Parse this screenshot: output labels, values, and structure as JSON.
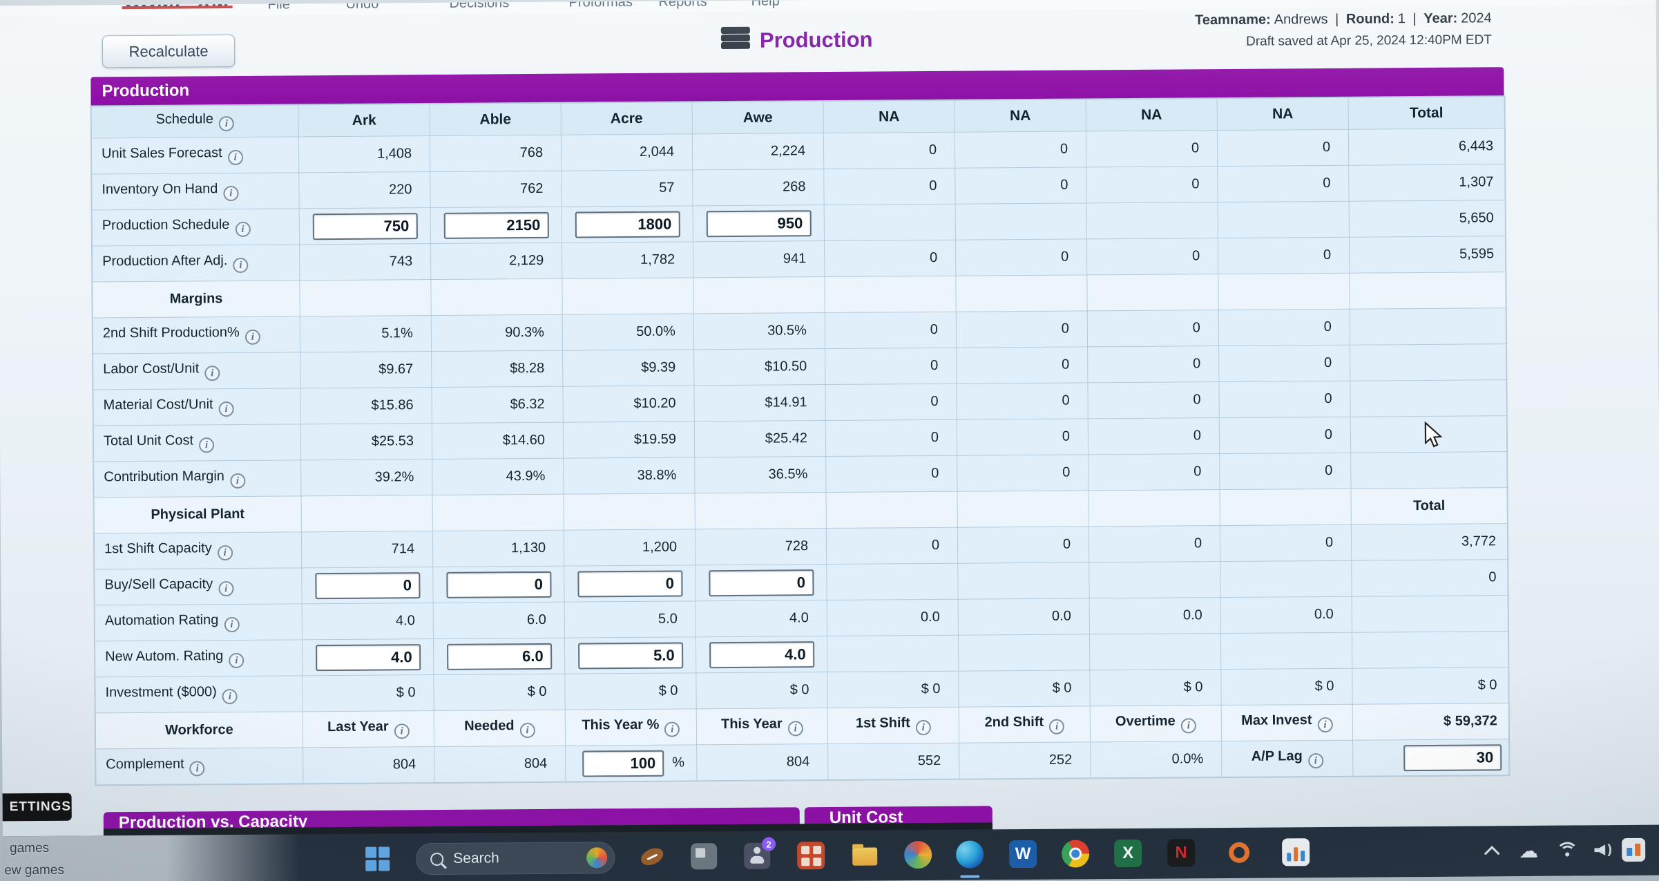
{
  "menu": {
    "logo": "COMP-XM",
    "items": [
      "File",
      "Undo",
      "Decisions",
      "Proformas",
      "Reports",
      "Help"
    ]
  },
  "header": {
    "recalculate": "Recalculate",
    "title": "Production",
    "team_label": "Teamname:",
    "team_value": "Andrews",
    "round_label": "Round:",
    "round_value": "1",
    "year_label": "Year:",
    "year_value": "2024",
    "sep": "|",
    "draft": "Draft saved at Apr 25, 2024 12:40PM EDT"
  },
  "prod_bar": "Production",
  "table": {
    "info_glyph": "i",
    "columns": [
      {
        "label": "Schedule",
        "info": true
      },
      {
        "label": "Ark"
      },
      {
        "label": "Able"
      },
      {
        "label": "Acre"
      },
      {
        "label": "Awe"
      },
      {
        "label": "NA"
      },
      {
        "label": "NA"
      },
      {
        "label": "NA"
      },
      {
        "label": "NA"
      },
      {
        "label": "Total"
      }
    ],
    "rows": [
      {
        "type": "data",
        "label": "Unit Sales Forecast",
        "info": true,
        "cells": [
          "1,408",
          "768",
          "2,044",
          "2,224",
          "0",
          "0",
          "0",
          "0"
        ],
        "total": "6,443"
      },
      {
        "type": "data",
        "label": "Inventory On Hand",
        "info": true,
        "cells": [
          "220",
          "762",
          "57",
          "268",
          "0",
          "0",
          "0",
          "0"
        ],
        "total": "1,307"
      },
      {
        "type": "input",
        "label": "Production Schedule",
        "info": true,
        "inputs": [
          "750",
          "2150",
          "1800",
          "950"
        ],
        "total": "5,650"
      },
      {
        "type": "data",
        "label": "Production After Adj.",
        "info": true,
        "cells": [
          "743",
          "2,129",
          "1,782",
          "941",
          "0",
          "0",
          "0",
          "0"
        ],
        "total": "5,595"
      },
      {
        "type": "section",
        "label": "Margins",
        "total_header": ""
      },
      {
        "type": "data",
        "label": "2nd Shift Production%",
        "info": true,
        "cells": [
          "5.1%",
          "90.3%",
          "50.0%",
          "30.5%",
          "0",
          "0",
          "0",
          "0"
        ],
        "total": ""
      },
      {
        "type": "data",
        "label": "Labor Cost/Unit",
        "info": true,
        "cells": [
          "$9.67",
          "$8.28",
          "$9.39",
          "$10.50",
          "0",
          "0",
          "0",
          "0"
        ],
        "total": ""
      },
      {
        "type": "data",
        "label": "Material Cost/Unit",
        "info": true,
        "cells": [
          "$15.86",
          "$6.32",
          "$10.20",
          "$14.91",
          "0",
          "0",
          "0",
          "0"
        ],
        "total": ""
      },
      {
        "type": "data",
        "label": "Total Unit Cost",
        "info": true,
        "cells": [
          "$25.53",
          "$14.60",
          "$19.59",
          "$25.42",
          "0",
          "0",
          "0",
          "0"
        ],
        "total": ""
      },
      {
        "type": "data",
        "label": "Contribution Margin",
        "info": true,
        "cells": [
          "39.2%",
          "43.9%",
          "38.8%",
          "36.5%",
          "0",
          "0",
          "0",
          "0"
        ],
        "total": ""
      },
      {
        "type": "section",
        "label": "Physical Plant",
        "total_header": "Total"
      },
      {
        "type": "data",
        "label": "1st Shift Capacity",
        "info": true,
        "cells": [
          "714",
          "1,130",
          "1,200",
          "728",
          "0",
          "0",
          "0",
          "0"
        ],
        "total": "3,772"
      },
      {
        "type": "input",
        "label": "Buy/Sell Capacity",
        "info": true,
        "inputs": [
          "0",
          "0",
          "0",
          "0"
        ],
        "total": "0"
      },
      {
        "type": "data",
        "label": "Automation Rating",
        "info": true,
        "cells": [
          "4.0",
          "6.0",
          "5.0",
          "4.0",
          "0.0",
          "0.0",
          "0.0",
          "0.0"
        ],
        "total": ""
      },
      {
        "type": "input",
        "label": "New Autom. Rating",
        "info": true,
        "inputs": [
          "4.0",
          "6.0",
          "5.0",
          "4.0"
        ],
        "total": ""
      },
      {
        "type": "data",
        "label": "Investment ($000)",
        "info": true,
        "cells": [
          "$ 0",
          "$ 0",
          "$ 0",
          "$ 0",
          "$ 0",
          "$ 0",
          "$ 0",
          "$ 0"
        ],
        "total": "$ 0"
      },
      {
        "type": "workforce",
        "label": "Workforce",
        "cols": [
          {
            "label": "Last Year",
            "info": true
          },
          {
            "label": "Needed",
            "info": true
          },
          {
            "label": "This Year %",
            "info": true
          },
          {
            "label": "This Year",
            "info": true
          },
          {
            "label": "1st Shift",
            "info": true
          },
          {
            "label": "2nd Shift",
            "info": true
          },
          {
            "label": "Overtime",
            "info": true
          },
          {
            "label": "Max Invest",
            "info": true
          }
        ],
        "total": "$ 59,372"
      },
      {
        "type": "complement",
        "label": "Complement",
        "info": true,
        "last_year": "804",
        "needed": "804",
        "this_year_pct": "100",
        "pct_suffix": "%",
        "this_year": "804",
        "first_shift": "552",
        "second_shift": "252",
        "overtime": "0.0%",
        "ap_lag": "A/P Lag",
        "ap_lag_info": true,
        "total_input": "30"
      }
    ]
  },
  "bottom_bars": [
    "Production vs. Capacity",
    "Unit Cost"
  ],
  "desktop": {
    "settings_tab": "ETTINGS",
    "labels": [
      "games",
      "ew games"
    ]
  },
  "taskbar": {
    "search_label": "Search",
    "teams_badge": "2",
    "word_letter": "W",
    "excel_letter": "X",
    "n_letter": "N"
  },
  "colors": {
    "accent_purple": "#8d0fa6",
    "title_purple": "#7c10a2",
    "cell_blue": "#e1effa",
    "taskbar": "#222d3a"
  }
}
